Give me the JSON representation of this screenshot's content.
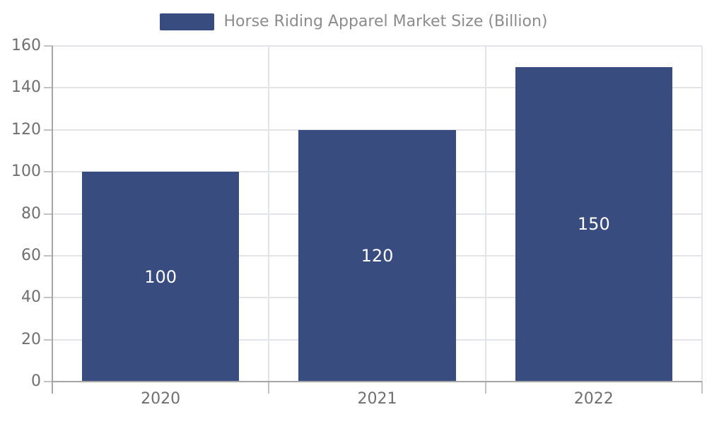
{
  "chart_data": {
    "type": "bar",
    "title": "Horse Riding Apparel Market Size (Billion)",
    "categories": [
      "2020",
      "2021",
      "2022"
    ],
    "values": [
      100,
      120,
      150
    ],
    "data_labels": [
      "100",
      "120",
      "150"
    ],
    "xlabel": "",
    "ylabel": "",
    "ylim": [
      0,
      160
    ],
    "yticks": [
      0,
      20,
      40,
      60,
      80,
      100,
      120,
      140,
      160
    ],
    "grid": true,
    "legend_position": "top-center",
    "colors": {
      "bar": "#394C80",
      "bar_label": "#FFFFFF",
      "axis_line": "#A6A6A6",
      "grid_line": "#E3E4E8",
      "tick_mark": "#C2C2C2",
      "tick_label": "#6F6F6F",
      "legend_text": "#8C8C8C",
      "background": "#FFFFFF"
    }
  }
}
